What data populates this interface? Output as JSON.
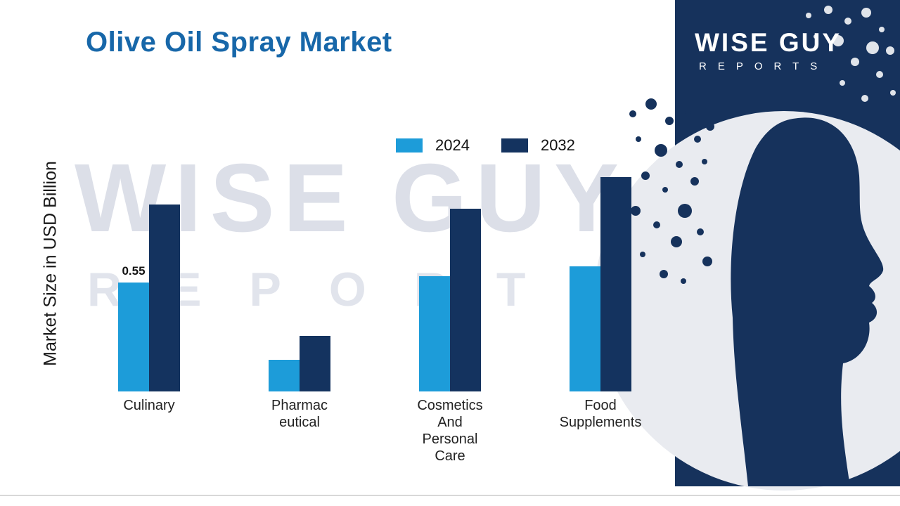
{
  "page": {
    "title": "Olive Oil Spray Market"
  },
  "logo": {
    "line1": "WISE GUY",
    "line2": "REPORTS"
  },
  "watermark": {
    "line1": "WISE GUY",
    "line2": "REPORTS"
  },
  "colors": {
    "title": "#1767a9",
    "series_2024": "#1d9cd9",
    "series_2032": "#14335f",
    "panel": "#16325c",
    "watermark": "#dcdfe8"
  },
  "chart_data": {
    "type": "bar",
    "title": "Olive Oil Spray Market",
    "ylabel": "Market Size in USD Billion",
    "ylim": [
      0,
      1.2
    ],
    "grid": false,
    "legend_position": "top-center",
    "categories": [
      {
        "name": "Culinary",
        "lines": [
          "Culinary"
        ]
      },
      {
        "name": "Pharmaceutical",
        "lines": [
          "Pharmac",
          "eutical"
        ]
      },
      {
        "name": "Cosmetics And Personal Care",
        "lines": [
          "Cosmetics",
          "And",
          "Personal",
          "Care"
        ]
      },
      {
        "name": "Food Supplements",
        "lines": [
          "Food",
          "Supplements"
        ]
      }
    ],
    "series": [
      {
        "name": "2024",
        "color": "#1d9cd9",
        "values": [
          0.55,
          0.16,
          0.58,
          0.63
        ]
      },
      {
        "name": "2032",
        "color": "#14335f",
        "values": [
          0.94,
          0.28,
          0.92,
          1.08
        ]
      }
    ],
    "data_labels": [
      {
        "series": "2024",
        "category": "Culinary",
        "text": "0.55"
      }
    ]
  }
}
